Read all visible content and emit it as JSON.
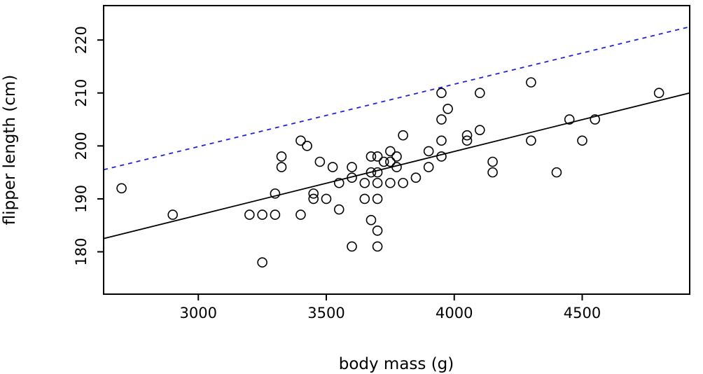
{
  "chart_data": {
    "type": "scatter",
    "title": "",
    "xlabel": "body mass (g)",
    "ylabel": "flipper length (cm)",
    "xlim": [
      2630,
      4920
    ],
    "ylim": [
      172,
      226.5
    ],
    "xticks": [
      3000,
      3500,
      4000,
      4500
    ],
    "yticks": [
      180,
      190,
      200,
      210,
      220
    ],
    "grid": false,
    "legend": null,
    "point_style": {
      "shape": "open-circle",
      "color": "#000000",
      "radius": 6.5
    },
    "points": [
      [
        2700,
        192
      ],
      [
        2900,
        187
      ],
      [
        3200,
        187
      ],
      [
        3250,
        187
      ],
      [
        3250,
        178
      ],
      [
        3300,
        191
      ],
      [
        3300,
        187
      ],
      [
        3325,
        196
      ],
      [
        3325,
        198
      ],
      [
        3400,
        187
      ],
      [
        3400,
        201
      ],
      [
        3425,
        200
      ],
      [
        3450,
        191
      ],
      [
        3450,
        190
      ],
      [
        3475,
        197
      ],
      [
        3500,
        190
      ],
      [
        3525,
        196
      ],
      [
        3550,
        193
      ],
      [
        3550,
        188
      ],
      [
        3600,
        196
      ],
      [
        3600,
        194
      ],
      [
        3600,
        181
      ],
      [
        3650,
        193
      ],
      [
        3650,
        190
      ],
      [
        3675,
        195
      ],
      [
        3675,
        198
      ],
      [
        3675,
        186
      ],
      [
        3700,
        195
      ],
      [
        3700,
        198
      ],
      [
        3700,
        193
      ],
      [
        3700,
        190
      ],
      [
        3700,
        184
      ],
      [
        3700,
        181
      ],
      [
        3725,
        197
      ],
      [
        3750,
        199
      ],
      [
        3750,
        197
      ],
      [
        3750,
        193
      ],
      [
        3775,
        196
      ],
      [
        3775,
        198
      ],
      [
        3800,
        202
      ],
      [
        3800,
        193
      ],
      [
        3850,
        194
      ],
      [
        3900,
        196
      ],
      [
        3900,
        199
      ],
      [
        3950,
        210
      ],
      [
        3950,
        205
      ],
      [
        3950,
        201
      ],
      [
        3950,
        198
      ],
      [
        3975,
        207
      ],
      [
        4050,
        202
      ],
      [
        4050,
        201
      ],
      [
        4100,
        210
      ],
      [
        4100,
        203
      ],
      [
        4150,
        197
      ],
      [
        4150,
        195
      ],
      [
        4300,
        212
      ],
      [
        4300,
        201
      ],
      [
        4400,
        195
      ],
      [
        4450,
        205
      ],
      [
        4500,
        201
      ],
      [
        4550,
        205
      ],
      [
        4800,
        210
      ]
    ],
    "lines": [
      {
        "name": "regression-line",
        "style": "solid",
        "color": "#000000",
        "x1": 2630,
        "y1": 182.5,
        "x2": 4920,
        "y2": 210.0
      },
      {
        "name": "upper-dashed-line",
        "style": "dashed",
        "color": "#2222dd",
        "x1": 2630,
        "y1": 195.5,
        "x2": 4920,
        "y2": 222.5
      }
    ]
  },
  "colors": {
    "background": "#ffffff",
    "axis": "#000000",
    "point": "#000000",
    "dashed_line": "#2222dd"
  }
}
